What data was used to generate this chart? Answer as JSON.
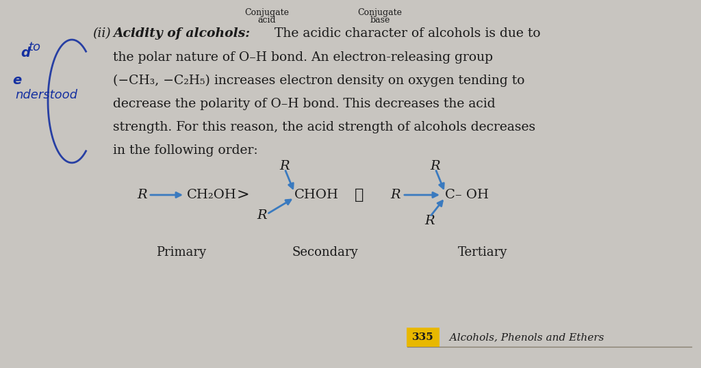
{
  "bg_color": "#c8c5c0",
  "header_acid": "Conjugate\nacid",
  "header_base": "Conjugate\nbase",
  "arrow_color": "#3a7abf",
  "primary_label": "Primary",
  "secondary_label": "Secondary",
  "tertiary_label": "Tertiary",
  "page_num": "335",
  "page_title": "Alcohols, Phenols and Ethers",
  "highlight_color": "#e8b800",
  "text_color": "#1a1a1a"
}
